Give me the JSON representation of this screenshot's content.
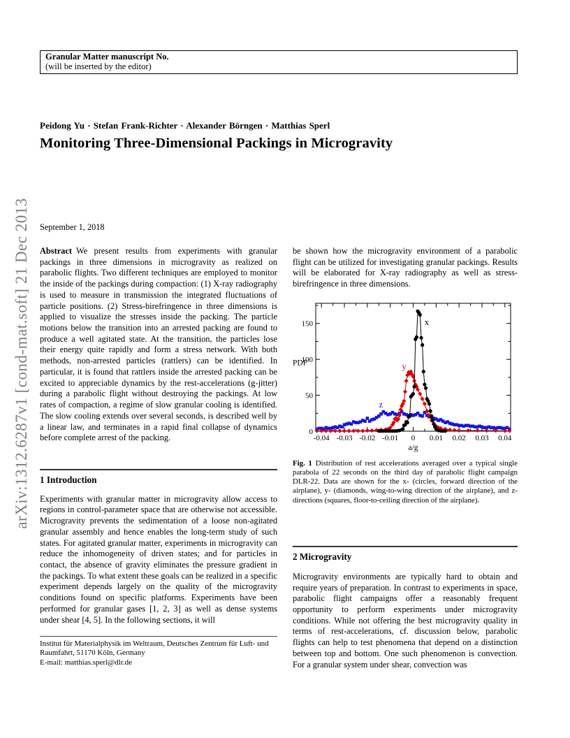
{
  "sidebar": {
    "watermark": "arXiv:1312.6287v1  [cond-mat.soft]  21 Dec 2013"
  },
  "manuscript_box": {
    "line1": "Granular Matter manuscript No.",
    "line2": "(will be inserted by the editor)"
  },
  "header": {
    "authors": "Peidong Yu  ·  Stefan Frank-Richter  ·  Alexander Börngen  ·  Matthias Sperl",
    "title": "Monitoring Three-Dimensional Packings in Microgravity",
    "date": "September 1, 2018"
  },
  "abstract": {
    "label": "Abstract",
    "text": "We present results from experiments with granular packings in three dimensions in microgravity as realized on parabolic flights. Two different techniques are employed to monitor the inside of the packings during compaction: (1) X-ray radiography is used to measure in transmission the integrated fluctuations of particle positions. (2) Stress-birefringence in three dimensions is applied to visualize the stresses inside the packing. The particle motions below the transition into an arrested packing are found to produce a well agitated state. At the transition, the particles lose their energy quite rapidly and form a stress network. With both methods, non-arrested particles (rattlers) can be identified. In particular, it is found that rattlers inside the arrested packing can be excited to appreciable dynamics by the rest-accelerations (g-jitter) during a parabolic flight without destroying the packings. At low rates of compaction, a regime of slow granular cooling is identified. The slow cooling extends over several seconds, is described well by a linear law, and terminates in a rapid final collapse of dynamics before complete arrest of the packing."
  },
  "sections": [
    {
      "heading": "1 Introduction",
      "body": "Experiments with granular matter in microgravity allow access to regions in control-parameter space that are otherwise not accessible. Microgravity prevents the sedimentation of a loose non-agitated granular assembly and hence enables the long-term study of such states. For agitated granular matter, experiments in microgravity can reduce the inhomogeneity of driven states; and for particles in contact, the absence of gravity eliminates the pressure gradient in the packings. To what extent these goals can be realized in a specific experiment depends largely on the quality of the microgravity conditions found on specific platforms. Experiments have been performed for granular gases [1, 2, 3] as well as dense systems under shear [4, 5]. In the following sections, it will"
    },
    {
      "heading": "2 Microgravity",
      "body": "Microgravity environments are typically hard to obtain and require years of preparation. In contrast to experiments in space, parabolic flight campaigns offer a reasonably frequent opportunity to perform experiments under microgravity conditions. While not offering the best microgravity quality in terms of rest-accelerations, cf. discussion below, parabolic flights can help to test phenomena that depend on a distinction between top and bottom. One such phenomenon is convection. For a granular system under shear, convection was"
    }
  ],
  "intro_continuation": "be shown how the microgravity environment of a parabolic flight can be utilized for investigating granular packings. Results will be elaborated for X-ray radiography as well as stress-birefringence in three dimensions.",
  "footnote": {
    "affiliation": "Institut für Materialphysik im Weltraum, Deutsches Zentrum für Luft- und Raumfahrt, 51170 Köln, Germany",
    "email": "E-mail: matthias.sperl@dlr.de"
  },
  "figure": {
    "caption_label": "Fig. 1",
    "caption_text": "Distribution of rest accelerations averaged over a typical single parabola of 22 seconds on the third day of parabolic flight campaign DLR-22. Data are shown for the x- (circles, forward direction of the airplane), y- (diamonds, wing-to-wing direction of the airplane), and z-directions (squares, floor-to-ceiling direction of the airplane)."
  },
  "chart_data": {
    "type": "line",
    "title": "",
    "xlabel": "a/g",
    "ylabel": "PDF",
    "xlim": [
      -0.0425,
      0.0425
    ],
    "ylim": [
      0,
      178
    ],
    "grid": false,
    "legend": "inline-annotations",
    "x_major_ticks": [
      -0.04,
      -0.03,
      -0.02,
      -0.01,
      0,
      0.01,
      0.02,
      0.03,
      0.04
    ],
    "x_tick_labels": [
      "-0.04",
      "-0.03",
      "-0.02",
      "-0.01",
      "0",
      "0.01",
      "0.02",
      "0.03",
      "0.04"
    ],
    "x_minor_ticks": [
      -0.035,
      -0.025,
      -0.015,
      -0.005,
      0.005,
      0.015,
      0.025,
      0.035
    ],
    "y_major_ticks": [
      0,
      50,
      100,
      150
    ],
    "y_tick_labels": [
      "0",
      "50",
      "100",
      "150"
    ],
    "y_minor_ticks": [
      25,
      75,
      125,
      175
    ],
    "series": [
      {
        "name": "z",
        "description": "z-direction, squares, floor-to-ceiling direction of the airplane",
        "marker": "square",
        "color": "#1515dd",
        "points": [
          [
            -0.042,
            3
          ],
          [
            -0.041,
            4
          ],
          [
            -0.04,
            4
          ],
          [
            -0.039,
            3
          ],
          [
            -0.038,
            5
          ],
          [
            -0.037,
            4
          ],
          [
            -0.036,
            4
          ],
          [
            -0.035,
            5
          ],
          [
            -0.034,
            6
          ],
          [
            -0.033,
            5
          ],
          [
            -0.032,
            7
          ],
          [
            -0.031,
            6
          ],
          [
            -0.03,
            9
          ],
          [
            -0.029,
            10
          ],
          [
            -0.028,
            11
          ],
          [
            -0.027,
            10
          ],
          [
            -0.026,
            13
          ],
          [
            -0.025,
            12
          ],
          [
            -0.024,
            12
          ],
          [
            -0.023,
            13
          ],
          [
            -0.022,
            15
          ],
          [
            -0.021,
            14
          ],
          [
            -0.02,
            18
          ],
          [
            -0.019,
            14
          ],
          [
            -0.018,
            16
          ],
          [
            -0.017,
            17
          ],
          [
            -0.016,
            19
          ],
          [
            -0.015,
            21
          ],
          [
            -0.014,
            24
          ],
          [
            -0.013,
            27
          ],
          [
            -0.012,
            25
          ],
          [
            -0.011,
            23
          ],
          [
            -0.01,
            24
          ],
          [
            -0.009,
            26
          ],
          [
            -0.008,
            24
          ],
          [
            -0.007,
            23
          ],
          [
            -0.006,
            25
          ],
          [
            -0.005,
            27
          ],
          [
            -0.004,
            24
          ],
          [
            -0.003,
            23
          ],
          [
            -0.002,
            22
          ],
          [
            -0.001,
            23
          ],
          [
            0,
            22
          ],
          [
            0.001,
            23
          ],
          [
            0.002,
            25
          ],
          [
            0.003,
            22
          ],
          [
            0.004,
            21
          ],
          [
            0.005,
            26
          ],
          [
            0.006,
            22
          ],
          [
            0.007,
            20
          ],
          [
            0.008,
            21
          ],
          [
            0.009,
            18
          ],
          [
            0.01,
            17
          ],
          [
            0.011,
            15
          ],
          [
            0.012,
            16
          ],
          [
            0.013,
            14
          ],
          [
            0.014,
            12
          ],
          [
            0.015,
            13
          ],
          [
            0.016,
            11
          ],
          [
            0.017,
            10
          ],
          [
            0.018,
            9
          ],
          [
            0.019,
            9
          ],
          [
            0.02,
            8
          ],
          [
            0.021,
            8
          ],
          [
            0.022,
            7
          ],
          [
            0.023,
            8
          ],
          [
            0.024,
            8
          ],
          [
            0.025,
            7
          ],
          [
            0.026,
            7
          ],
          [
            0.027,
            6
          ],
          [
            0.028,
            6
          ],
          [
            0.029,
            7
          ],
          [
            0.03,
            6
          ],
          [
            0.031,
            5
          ],
          [
            0.032,
            5
          ],
          [
            0.033,
            6
          ],
          [
            0.034,
            5
          ],
          [
            0.035,
            5
          ],
          [
            0.036,
            4
          ],
          [
            0.037,
            5
          ],
          [
            0.038,
            5
          ],
          [
            0.039,
            4
          ],
          [
            0.04,
            4
          ],
          [
            0.041,
            5
          ],
          [
            0.042,
            3
          ]
        ]
      },
      {
        "name": "y",
        "description": "y-direction, diamonds, wing-to-wing direction of the airplane",
        "marker": "diamond",
        "color": "#dd0000",
        "points": [
          [
            -0.042,
            0.5
          ],
          [
            -0.04,
            0.5
          ],
          [
            -0.038,
            0.5
          ],
          [
            -0.036,
            0.5
          ],
          [
            -0.034,
            0.5
          ],
          [
            -0.032,
            0.5
          ],
          [
            -0.03,
            0.5
          ],
          [
            -0.028,
            0.5
          ],
          [
            -0.026,
            0.5
          ],
          [
            -0.024,
            0.5
          ],
          [
            -0.022,
            0.5
          ],
          [
            -0.02,
            1
          ],
          [
            -0.018,
            1
          ],
          [
            -0.016,
            1.5
          ],
          [
            -0.014,
            2
          ],
          [
            -0.012,
            2.5
          ],
          [
            -0.011,
            3
          ],
          [
            -0.01,
            5
          ],
          [
            -0.009,
            9
          ],
          [
            -0.0085,
            12
          ],
          [
            -0.008,
            17
          ],
          [
            -0.0075,
            18
          ],
          [
            -0.007,
            15
          ],
          [
            -0.0065,
            17
          ],
          [
            -0.006,
            22
          ],
          [
            -0.0055,
            30
          ],
          [
            -0.005,
            35
          ],
          [
            -0.0045,
            38
          ],
          [
            -0.004,
            42
          ],
          [
            -0.0035,
            55
          ],
          [
            -0.003,
            70
          ],
          [
            -0.0025,
            78
          ],
          [
            -0.002,
            82
          ],
          [
            -0.0015,
            80
          ],
          [
            -0.001,
            83
          ],
          [
            -0.0005,
            79
          ],
          [
            0,
            76
          ],
          [
            0.0005,
            70
          ],
          [
            0.001,
            65
          ],
          [
            0.0015,
            62
          ],
          [
            0.002,
            58
          ],
          [
            0.003,
            52
          ],
          [
            0.004,
            45
          ],
          [
            0.005,
            38
          ],
          [
            0.006,
            28
          ],
          [
            0.007,
            22
          ],
          [
            0.008,
            15
          ],
          [
            0.009,
            10
          ],
          [
            0.01,
            7
          ],
          [
            0.011,
            5
          ],
          [
            0.012,
            4
          ],
          [
            0.014,
            3
          ],
          [
            0.016,
            2
          ],
          [
            0.018,
            1.5
          ],
          [
            0.02,
            1
          ],
          [
            0.024,
            1
          ],
          [
            0.028,
            1
          ],
          [
            0.032,
            0.8
          ],
          [
            0.036,
            0.8
          ],
          [
            0.04,
            0.5
          ],
          [
            0.042,
            0.5
          ]
        ]
      },
      {
        "name": "x",
        "description": "x-direction, circles, forward direction of the airplane",
        "marker": "circle",
        "color": "#000000",
        "points": [
          [
            -0.015,
            0.3
          ],
          [
            -0.014,
            0.3
          ],
          [
            -0.013,
            0.3
          ],
          [
            -0.012,
            0.3
          ],
          [
            -0.011,
            0.3
          ],
          [
            -0.01,
            0.3
          ],
          [
            -0.009,
            0.3
          ],
          [
            -0.008,
            0.3
          ],
          [
            -0.007,
            0.5
          ],
          [
            -0.006,
            1
          ],
          [
            -0.005,
            2
          ],
          [
            -0.0045,
            3
          ],
          [
            -0.004,
            8
          ],
          [
            -0.0035,
            9
          ],
          [
            -0.003,
            13
          ],
          [
            -0.0025,
            12
          ],
          [
            -0.002,
            20
          ],
          [
            -0.0015,
            21
          ],
          [
            -0.001,
            48
          ],
          [
            -0.0005,
            50
          ],
          [
            0,
            52
          ],
          [
            0.0005,
            62
          ],
          [
            0.001,
            128
          ],
          [
            0.0015,
            131
          ],
          [
            0.002,
            167
          ],
          [
            0.0025,
            165
          ],
          [
            0.003,
            162
          ],
          [
            0.0035,
            130
          ],
          [
            0.004,
            120
          ],
          [
            0.0045,
            83
          ],
          [
            0.005,
            65
          ],
          [
            0.0055,
            60
          ],
          [
            0.006,
            45
          ],
          [
            0.0065,
            42
          ],
          [
            0.007,
            38
          ],
          [
            0.0075,
            28
          ],
          [
            0.008,
            20
          ],
          [
            0.0085,
            15
          ],
          [
            0.009,
            10
          ],
          [
            0.0095,
            6
          ],
          [
            0.01,
            3
          ],
          [
            0.011,
            1
          ],
          [
            0.012,
            0.5
          ],
          [
            0.013,
            0.3
          ],
          [
            0.014,
            0.3
          ]
        ]
      }
    ],
    "annotations": [
      {
        "text": "x",
        "x": 0.005,
        "y": 148,
        "color": "#000000"
      },
      {
        "text": "y",
        "x": -0.0049,
        "y": 86,
        "color": "#dd0000"
      },
      {
        "text": "z",
        "x": -0.0149,
        "y": 33,
        "color": "#1515dd"
      }
    ]
  }
}
